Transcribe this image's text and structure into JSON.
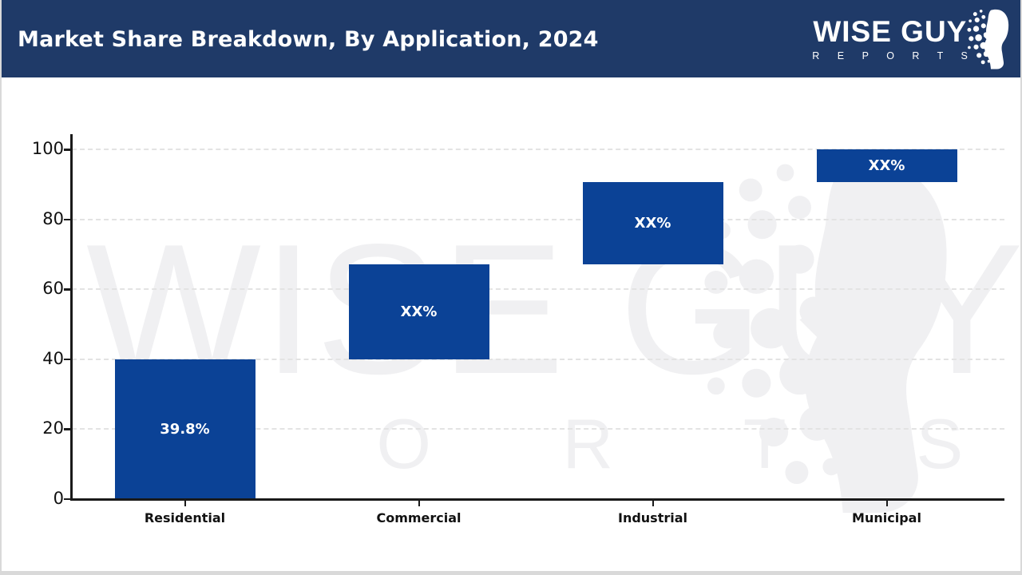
{
  "header": {
    "title": "Market Share Breakdown, By Application, 2024",
    "brand": {
      "line1": "WISE GUY",
      "line2": "R E P O R T S"
    }
  },
  "watermark": {
    "line1": "WISE GUY",
    "line2": "P O R T S"
  },
  "chart_data": {
    "type": "bar",
    "subtype": "waterfall",
    "title": "Market Share Breakdown, By Application, 2024",
    "categories": [
      "Residential",
      "Commercial",
      "Industrial",
      "Municipal"
    ],
    "segments": [
      {
        "category": "Residential",
        "start": 0,
        "end": 39.8,
        "label": "39.8%"
      },
      {
        "category": "Commercial",
        "start": 39.8,
        "end": 67.0,
        "label": "XX%"
      },
      {
        "category": "Industrial",
        "start": 67.0,
        "end": 90.6,
        "label": "XX%"
      },
      {
        "category": "Municipal",
        "start": 90.6,
        "end": 100.0,
        "label": "XX%"
      }
    ],
    "yticks": [
      0,
      20,
      40,
      60,
      80,
      100
    ],
    "ylim": [
      0,
      104.5
    ],
    "xlabel": "",
    "ylabel": "",
    "grid": "horizontal-dashed",
    "legend": "none",
    "bar_color": "#0b4296",
    "bar_label_color": "#ffffff"
  },
  "colors": {
    "header_bg": "#1f3a68",
    "bar": "#0b4296",
    "gridline": "#e3e3e3",
    "axis": "#1a1a1a",
    "watermark": "#f0f0f2",
    "frame_border": "#d9d9d9",
    "tick_text": "#111111"
  }
}
